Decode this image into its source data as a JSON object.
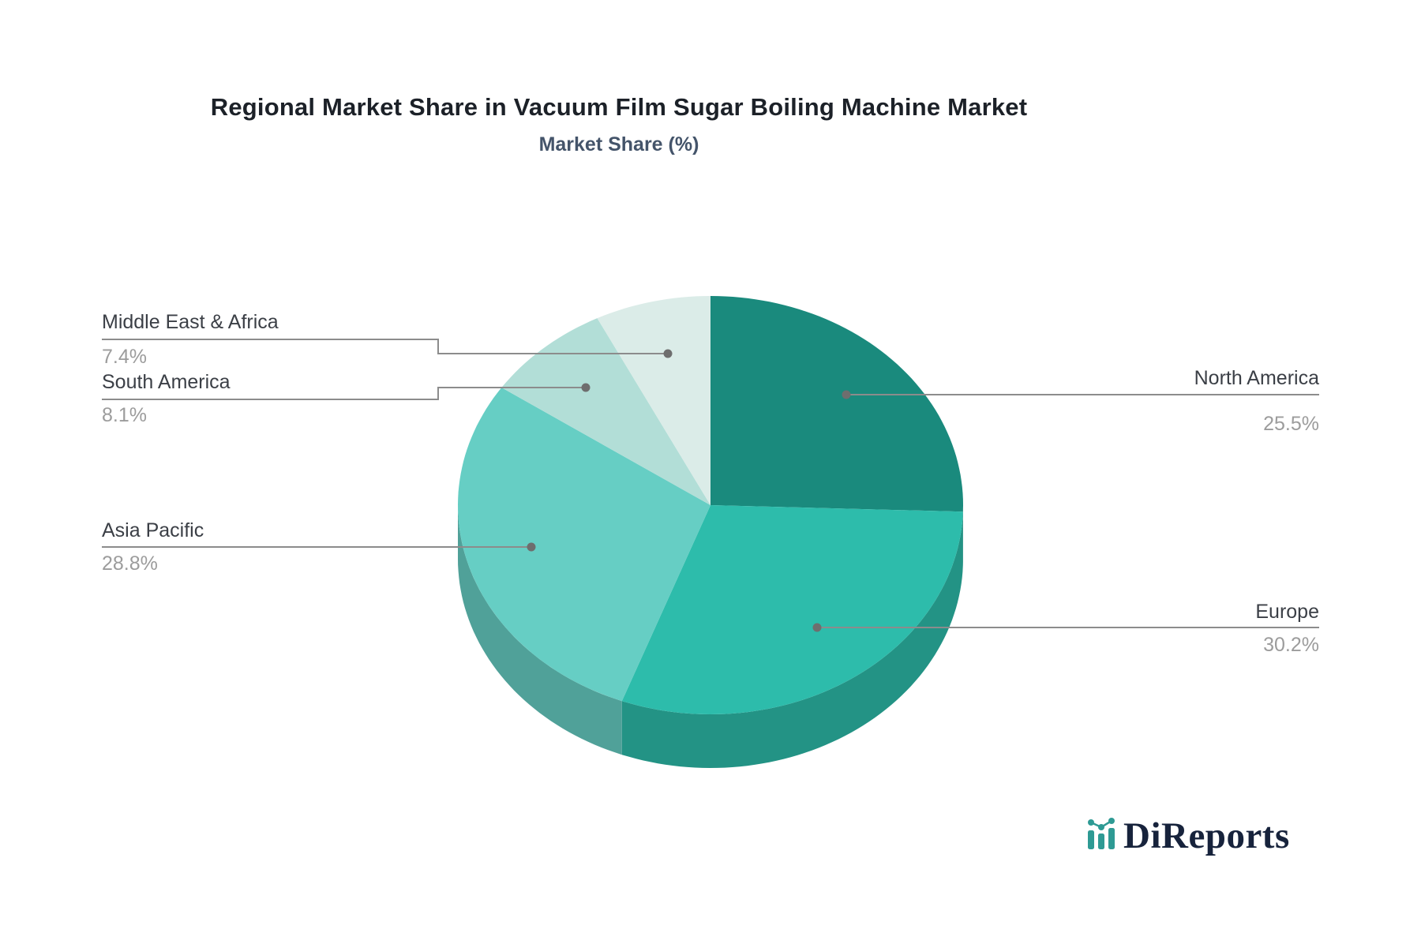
{
  "title": "Regional Market Share in Vacuum Film Sugar Boiling Machine Market",
  "subtitle": "Market Share (%)",
  "logo": {
    "brand": "DiReports",
    "icon": "bar-line-chart-icon"
  },
  "colors": {
    "background": "#ffffff",
    "title_text": "#1c2128",
    "subtitle_text": "#44546a",
    "label_text": "#3b3f46",
    "pct_text": "#9c9c9c",
    "leader_line": "#8c8c8c",
    "dot": "#6e6e6e",
    "logo_text": "#17233c",
    "logo_icon": "#2e9a94"
  },
  "chart_data": {
    "type": "pie",
    "style": "3d",
    "title": "Regional Market Share in Vacuum Film Sugar Boiling Machine Market",
    "subtitle": "Market Share (%)",
    "unit": "%",
    "direction": "clockwise",
    "start_angle_deg": 0,
    "legend": "none",
    "slices": [
      {
        "label": "North America",
        "value": 25.5,
        "display": "25.5%",
        "color": "#1a8a7d"
      },
      {
        "label": "Europe",
        "value": 30.2,
        "display": "30.2%",
        "color": "#2dbcab"
      },
      {
        "label": "Asia Pacific",
        "value": 28.8,
        "display": "28.8%",
        "color": "#66cec4"
      },
      {
        "label": "South America",
        "value": 8.1,
        "display": "8.1%",
        "color": "#b2ded7"
      },
      {
        "label": "Middle East & Africa",
        "value": 7.4,
        "display": "7.4%",
        "color": "#dbece8"
      }
    ]
  }
}
